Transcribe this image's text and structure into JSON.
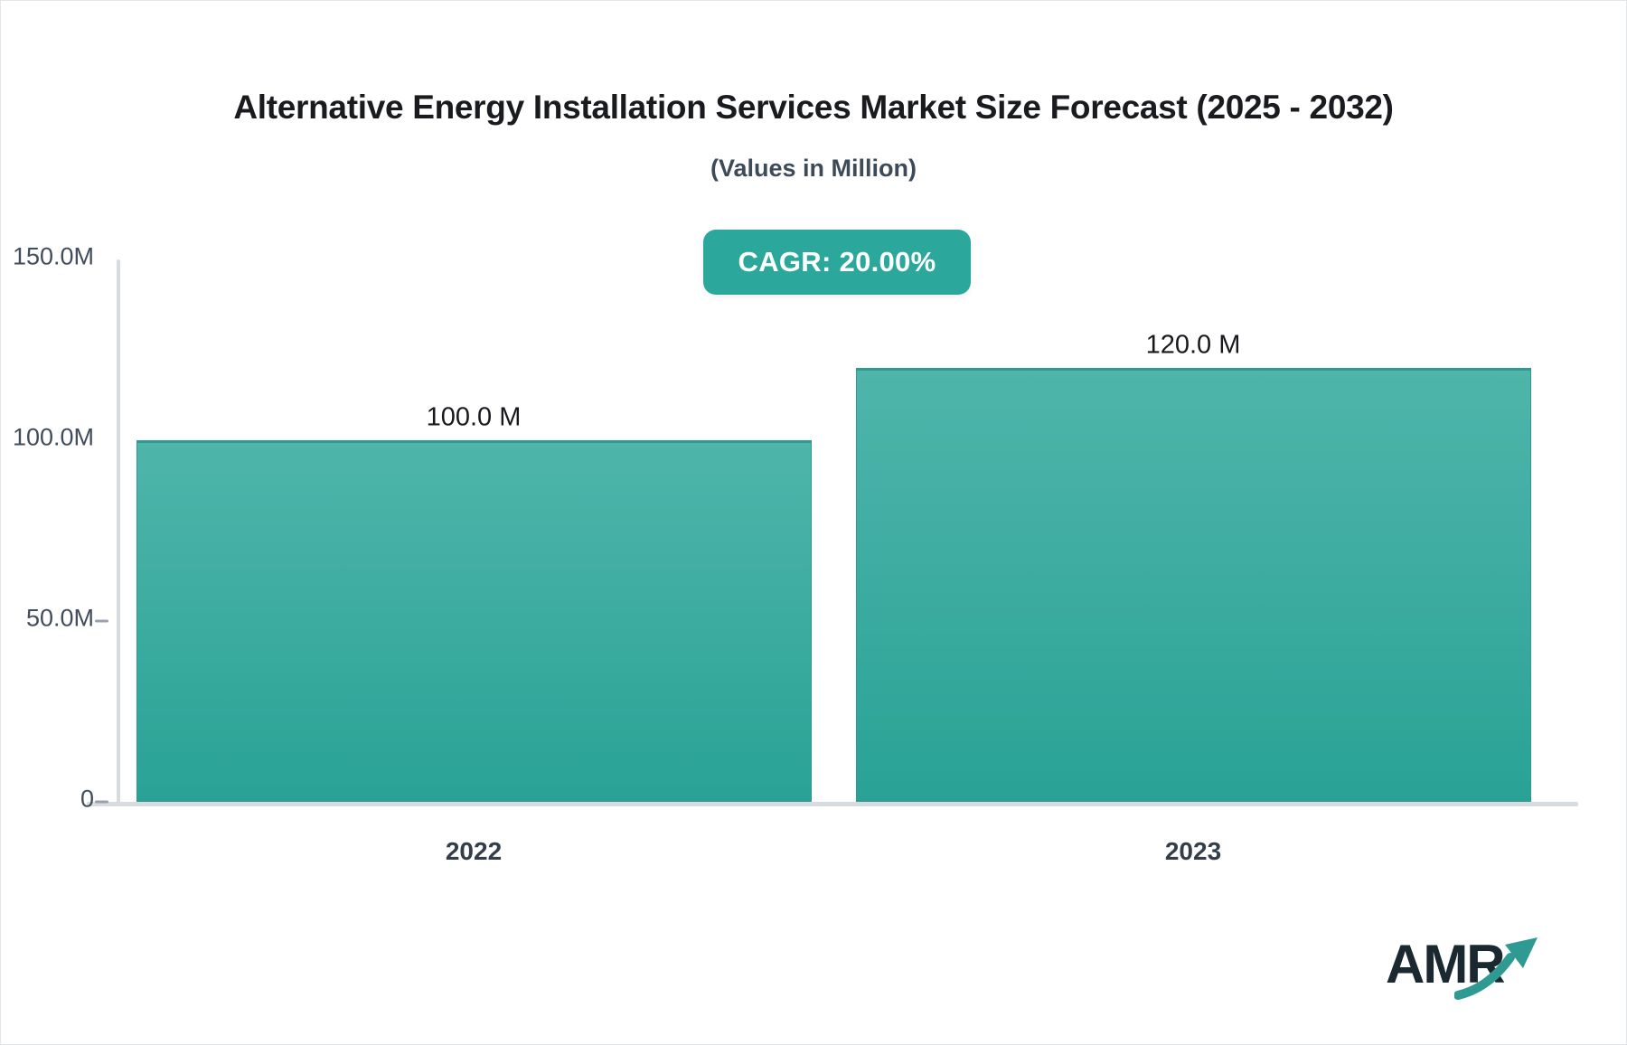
{
  "chart_data": {
    "type": "bar",
    "title": "Alternative Energy Installation Services Market Size Forecast (2025 - 2032)",
    "subtitle": "(Values in Million)",
    "cagr_label": "CAGR: 20.00%",
    "categories": [
      "2022",
      "2023"
    ],
    "values": [
      100.0,
      120.0
    ],
    "value_labels": [
      "100.0 M",
      "120.0 M"
    ],
    "unit": "Million",
    "ylim": [
      0,
      150
    ],
    "y_ticks": [
      {
        "value": 0,
        "label": "0",
        "dash": true
      },
      {
        "value": 50,
        "label": "50.0M",
        "dash": true
      },
      {
        "value": 100,
        "label": "100.0M",
        "dash": false
      },
      {
        "value": 150,
        "label": "150.0M",
        "dash": false
      }
    ],
    "grid": false,
    "legend": "none",
    "colors": {
      "accent": "#2ba89b",
      "bar_top": "#4fb5ab",
      "bar_bottom": "#29a295",
      "bar_border": "#2a9c91",
      "axis": "#d8dbe0",
      "tick": "#9aa1ac"
    }
  },
  "branding": {
    "logo_text": "AMR"
  }
}
